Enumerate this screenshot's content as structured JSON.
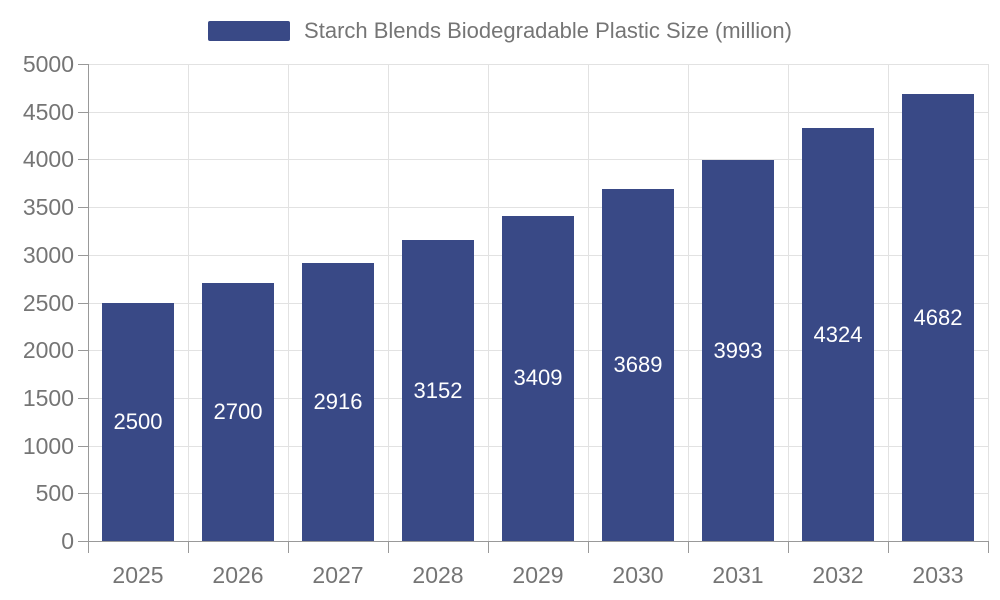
{
  "chart_data": {
    "type": "bar",
    "title": "Starch Blends Biodegradable Plastic Size (million)",
    "categories": [
      "2025",
      "2026",
      "2027",
      "2028",
      "2029",
      "2030",
      "2031",
      "2032",
      "2033"
    ],
    "values": [
      2500,
      2700,
      2916,
      3152,
      3409,
      3689,
      3993,
      4324,
      4682
    ],
    "series_name": "Starch Blends Biodegradable Plastic Size (million)",
    "xlabel": "",
    "ylabel": "",
    "ylim": [
      0,
      5000
    ],
    "yticks": [
      0,
      500,
      1000,
      1500,
      2000,
      2500,
      3000,
      3500,
      4000,
      4500,
      5000
    ],
    "grid": "on",
    "legend_position": "top-center",
    "bar_label_position": "inside-center",
    "colors": {
      "bar": "#394986",
      "bar_label": "#ffffff",
      "gridline": "#e2e2e2",
      "axis_line": "#999999",
      "tick_text": "#757575",
      "legend_text": "#757575",
      "background": "#ffffff"
    }
  }
}
